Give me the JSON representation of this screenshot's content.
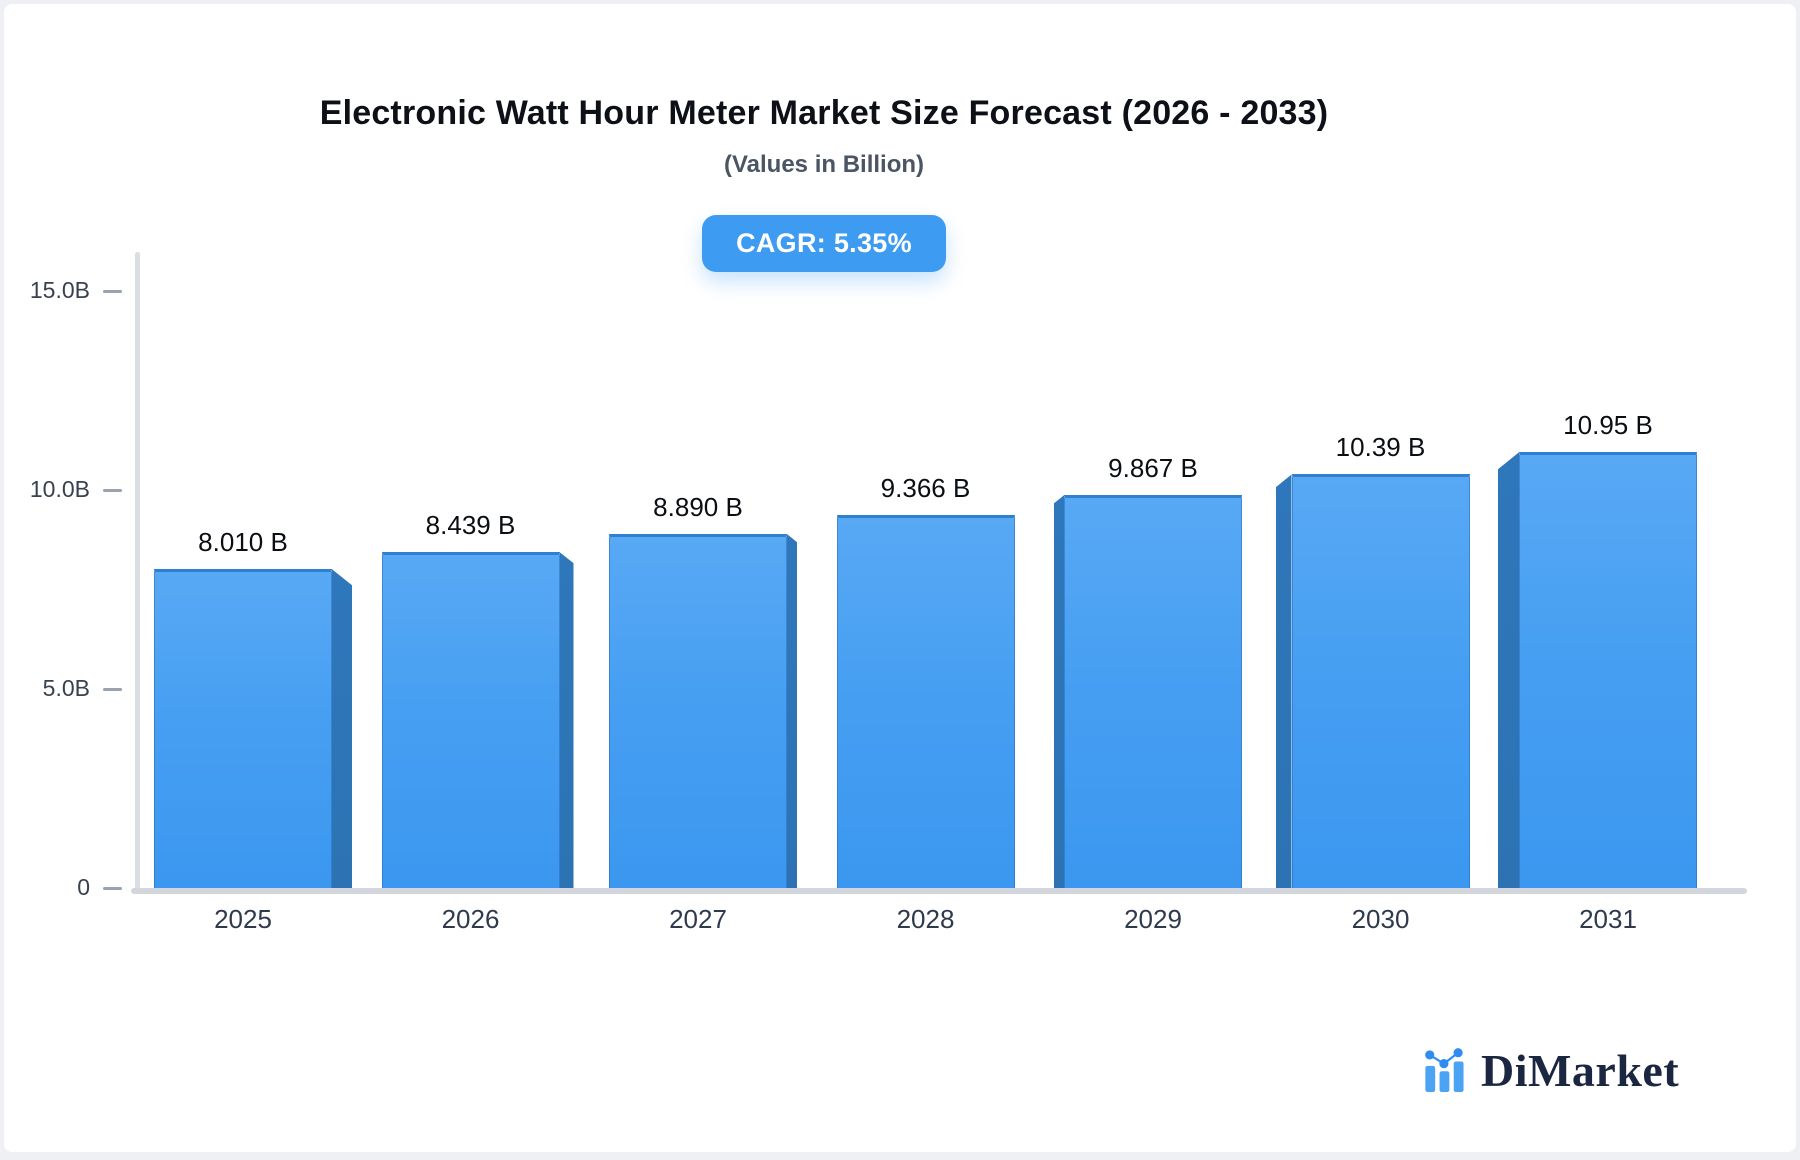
{
  "title": "Electronic Watt Hour Meter Market Size Forecast (2026 - 2033)",
  "subtitle": "(Values in Billion)",
  "badge": {
    "label": "CAGR: 5.35%",
    "background": "#3e9bf2",
    "text_color": "#ffffff"
  },
  "logo": {
    "text": "DiMarket",
    "icon": "bar-chart-logo-icon",
    "text_color": "#1b2640",
    "icon_color": "#4aa3f3"
  },
  "colors": {
    "bar_face_top": "#58a9f4",
    "bar_face_bottom": "#3b97ef",
    "bar_side": "#2d73b4",
    "axis_line": "#d3d7dd",
    "tick": "#9aa2ae",
    "title_text": "#0d1117",
    "subtitle_text": "#4b5563",
    "axis_label_text": "#39414f"
  },
  "chart_data": {
    "type": "bar",
    "title": "Electronic Watt Hour Meter Market Size Forecast (2026 - 2033)",
    "subtitle": "(Values in Billion)",
    "categories": [
      "2025",
      "2026",
      "2027",
      "2028",
      "2029",
      "2030",
      "2031"
    ],
    "values": [
      8.01,
      8.439,
      8.89,
      9.366,
      9.867,
      10.39,
      10.95
    ],
    "value_labels": [
      "8.010 B",
      "8.439 B",
      "8.890 B",
      "9.366 B",
      "9.867 B",
      "10.39 B",
      "10.95 B"
    ],
    "xlabel": "",
    "ylabel": "",
    "ylim": [
      0,
      15
    ],
    "yticks": [
      {
        "value": 0,
        "label": "0"
      },
      {
        "value": 5,
        "label": "5.0B"
      },
      {
        "value": 10,
        "label": "10.0B"
      },
      {
        "value": 15,
        "label": "15.0B"
      }
    ],
    "grid": false,
    "legend": false,
    "style": "3d-perspective-bars",
    "annotation": "CAGR: 5.35%"
  }
}
